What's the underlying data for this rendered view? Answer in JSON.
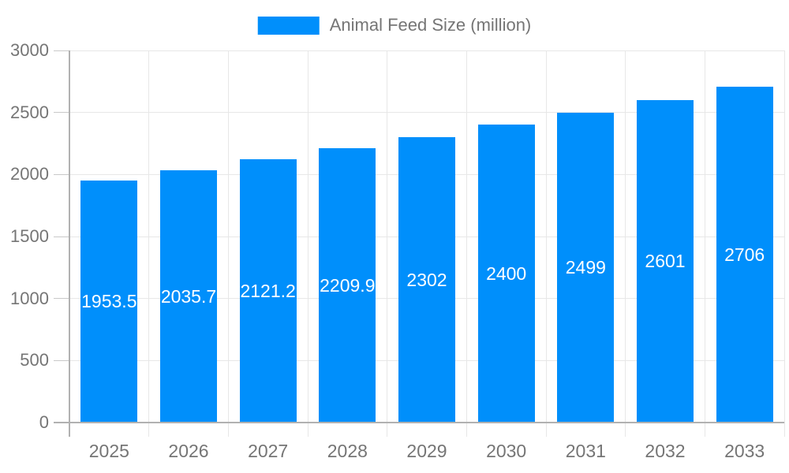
{
  "legend": {
    "label": "Animal Feed Size (million)"
  },
  "chart_data": {
    "type": "bar",
    "title": "Animal Feed Size (million)",
    "categories": [
      "2025",
      "2026",
      "2027",
      "2028",
      "2029",
      "2030",
      "2031",
      "2032",
      "2033"
    ],
    "series": [
      {
        "name": "Animal Feed Size (million)",
        "values": [
          1953.5,
          2035.7,
          2121.2,
          2209.9,
          2302,
          2400,
          2499,
          2601,
          2706
        ],
        "value_labels": [
          "1953.5",
          "2035.7",
          "2121.2",
          "2209.9",
          "2302",
          "2400",
          "2499",
          "2601",
          "2706"
        ]
      }
    ],
    "xlabel": "",
    "ylabel": "",
    "ylim": [
      0,
      3000
    ],
    "ytick_step": 500,
    "yticks": [
      "0",
      "500",
      "1000",
      "1500",
      "2000",
      "2500",
      "3000"
    ],
    "grid": true,
    "legend_position": "top",
    "value_label_position": "middle-of-bar"
  },
  "colors": {
    "bar": "#008FFB",
    "bar_label": "#FFFFFF",
    "grid": "#E7E7E7",
    "axis": "#B1B1B1",
    "tick": "#C9C9C9",
    "text": "#757575"
  }
}
